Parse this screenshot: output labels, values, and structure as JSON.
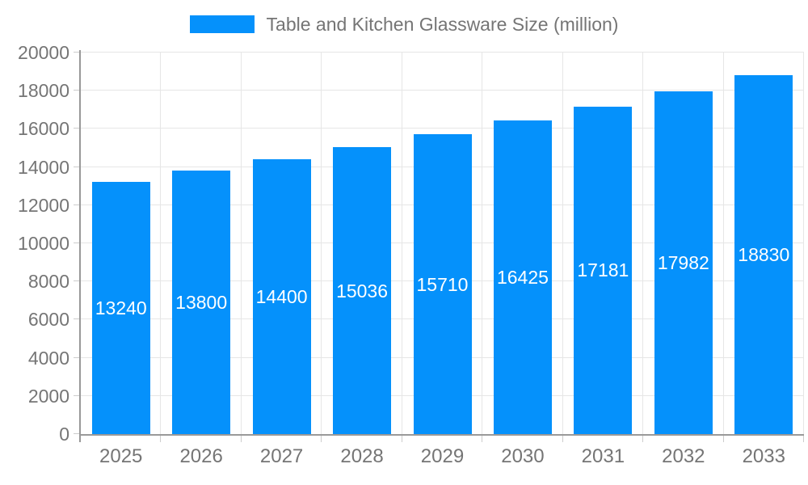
{
  "chart_data": {
    "type": "bar",
    "title": "Table and Kitchen Glassware Size (million)",
    "legend": [
      "Table and Kitchen Glassware Size (million)"
    ],
    "legend_position": "top-center",
    "categories": [
      "2025",
      "2026",
      "2027",
      "2028",
      "2029",
      "2030",
      "2031",
      "2032",
      "2033"
    ],
    "series": [
      {
        "name": "Table and Kitchen Glassware Size (million)",
        "values": [
          13240,
          13800,
          14400,
          15036,
          15710,
          16425,
          17181,
          17982,
          18830
        ]
      }
    ],
    "data_labels_visible": true,
    "xlabel": "",
    "ylabel": "",
    "ylim": [
      0,
      20000
    ],
    "yticks": [
      0,
      2000,
      4000,
      6000,
      8000,
      10000,
      12000,
      14000,
      16000,
      18000,
      20000
    ],
    "grid": true,
    "colors": {
      "bar": "#0591fb",
      "bar_label_text": "#ffffff",
      "axis_line": "#999999",
      "gridline": "#e6e6e6",
      "tick_mark": "#cccccc",
      "axis_text": "#757575",
      "title_text": "#757575",
      "background": "#ffffff"
    }
  }
}
